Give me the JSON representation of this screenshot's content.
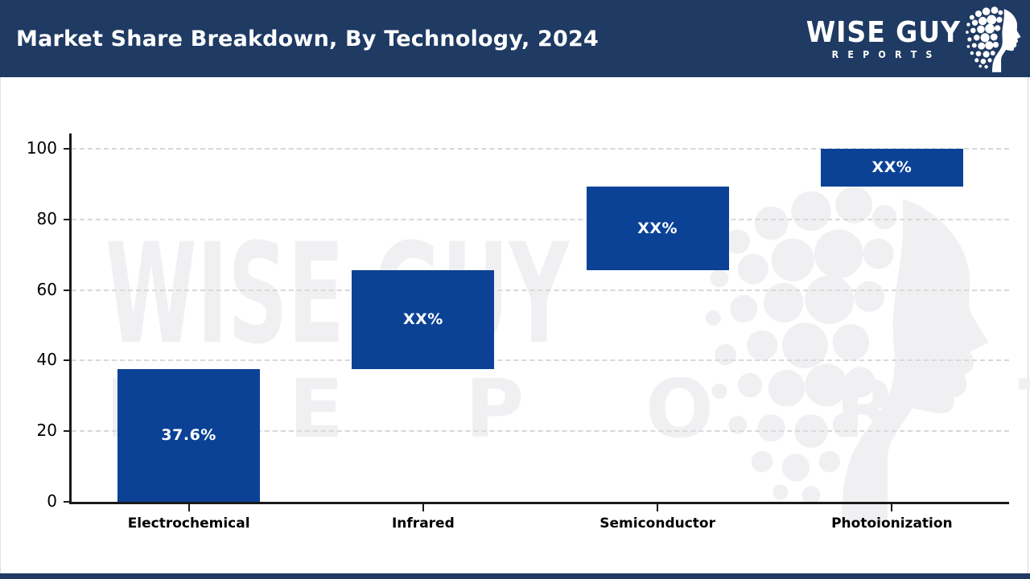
{
  "header": {
    "title": "Market Share Breakdown, By Technology, 2024"
  },
  "brand": {
    "name": "WISE GUY",
    "reports": "R E P O R T S"
  },
  "watermark": {
    "name": "WISE GUY",
    "reports": "R E P O R T S"
  },
  "colors": {
    "header_bg": "#1f3a63",
    "footer_bg": "#1f3a63",
    "bar": "#0b4296",
    "bar_label": "#ffffff",
    "grid": "#d9d9d9",
    "axis": "#1a1a1a",
    "watermark": "#f0f0f2"
  },
  "chart_data": {
    "type": "bar",
    "subtype": "waterfall",
    "title": "Market Share Breakdown, By Technology, 2024",
    "categories": [
      "Electrochemical",
      "Infrared",
      "Semiconductor",
      "Photoionization"
    ],
    "series": [
      {
        "name": "Market share (%)",
        "segments": [
          {
            "category": "Electrochemical",
            "start": 0,
            "end": 37.6,
            "label": "37.6%"
          },
          {
            "category": "Infrared",
            "start": 37.6,
            "end": 65.6,
            "label": "XX%"
          },
          {
            "category": "Semiconductor",
            "start": 65.6,
            "end": 89.3,
            "label": "XX%"
          },
          {
            "category": "Photoionization",
            "start": 89.3,
            "end": 100,
            "label": "XX%"
          }
        ]
      }
    ],
    "ylim": [
      0,
      100
    ],
    "yticks": [
      0,
      20,
      40,
      60,
      80,
      100
    ],
    "xlabel": "",
    "ylabel": "",
    "grid": true,
    "legend": false
  }
}
